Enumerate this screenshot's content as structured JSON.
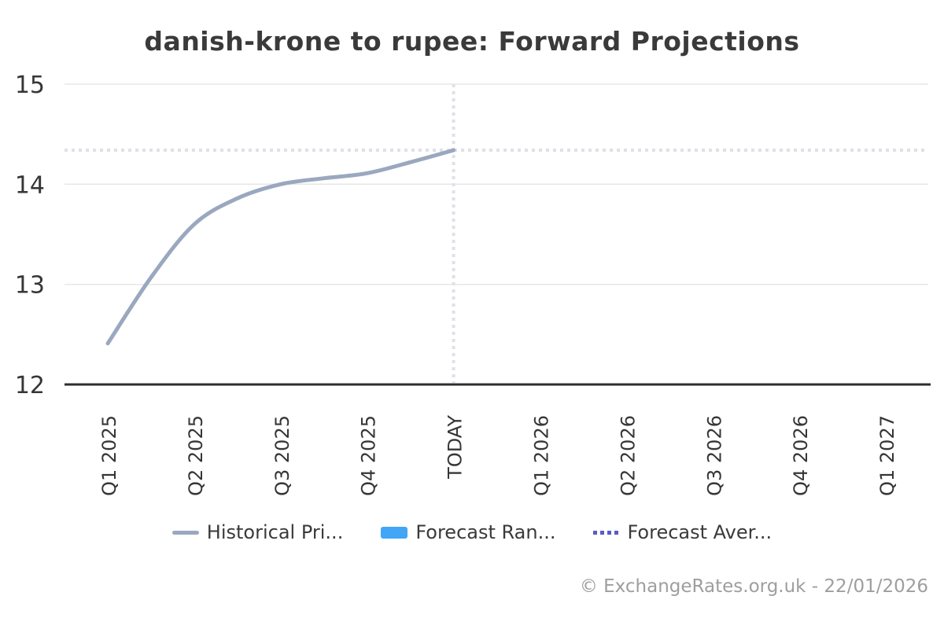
{
  "header": {
    "title": "danish-krone to rupee: Forward Projections"
  },
  "chart_data": {
    "type": "line",
    "title": "danish-krone to rupee: Forward Projections",
    "x_categories": [
      "Q1 2025",
      "Q2 2025",
      "Q3 2025",
      "Q4 2025",
      "TODAY",
      "Q1 2026",
      "Q2 2026",
      "Q3 2026",
      "Q4 2026",
      "Q1 2027"
    ],
    "y_ticks": [
      12,
      13,
      14,
      15
    ],
    "ylim": [
      12,
      15
    ],
    "grid": "horizontal",
    "today_category_index": 4,
    "forecast_average": 14.34,
    "series": [
      {
        "name": "Historical Price",
        "type": "line",
        "color": "#9aa8bf",
        "points": [
          [
            0,
            12.41
          ],
          [
            0.5,
            13.07
          ],
          [
            1,
            13.6
          ],
          [
            1.5,
            13.86
          ],
          [
            2,
            14.0
          ],
          [
            2.5,
            14.06
          ],
          [
            3,
            14.11
          ],
          [
            3.5,
            14.22
          ],
          [
            4,
            14.34
          ]
        ]
      },
      {
        "name": "Forecast Range",
        "type": "area",
        "color": "#42a5f5",
        "points": []
      },
      {
        "name": "Forecast Average",
        "type": "dotted-line",
        "color": "#5b5bc7",
        "value": 14.34
      }
    ],
    "guide_colors": {
      "gridline": "#e7e7e7",
      "axis": "#2d2d2d",
      "dotted_guides": "#dfe1e8"
    }
  },
  "legend": {
    "items": [
      {
        "label": "Historical Pri...",
        "swatch": "line",
        "color": "#9aa8bf"
      },
      {
        "label": "Forecast Ran...",
        "swatch": "rect",
        "color": "#42a5f5"
      },
      {
        "label": "Forecast Aver...",
        "swatch": "dotted",
        "color": "#5b5bc7"
      }
    ]
  },
  "footer": {
    "attribution": "© ExchangeRates.org.uk - 22/01/2026"
  }
}
